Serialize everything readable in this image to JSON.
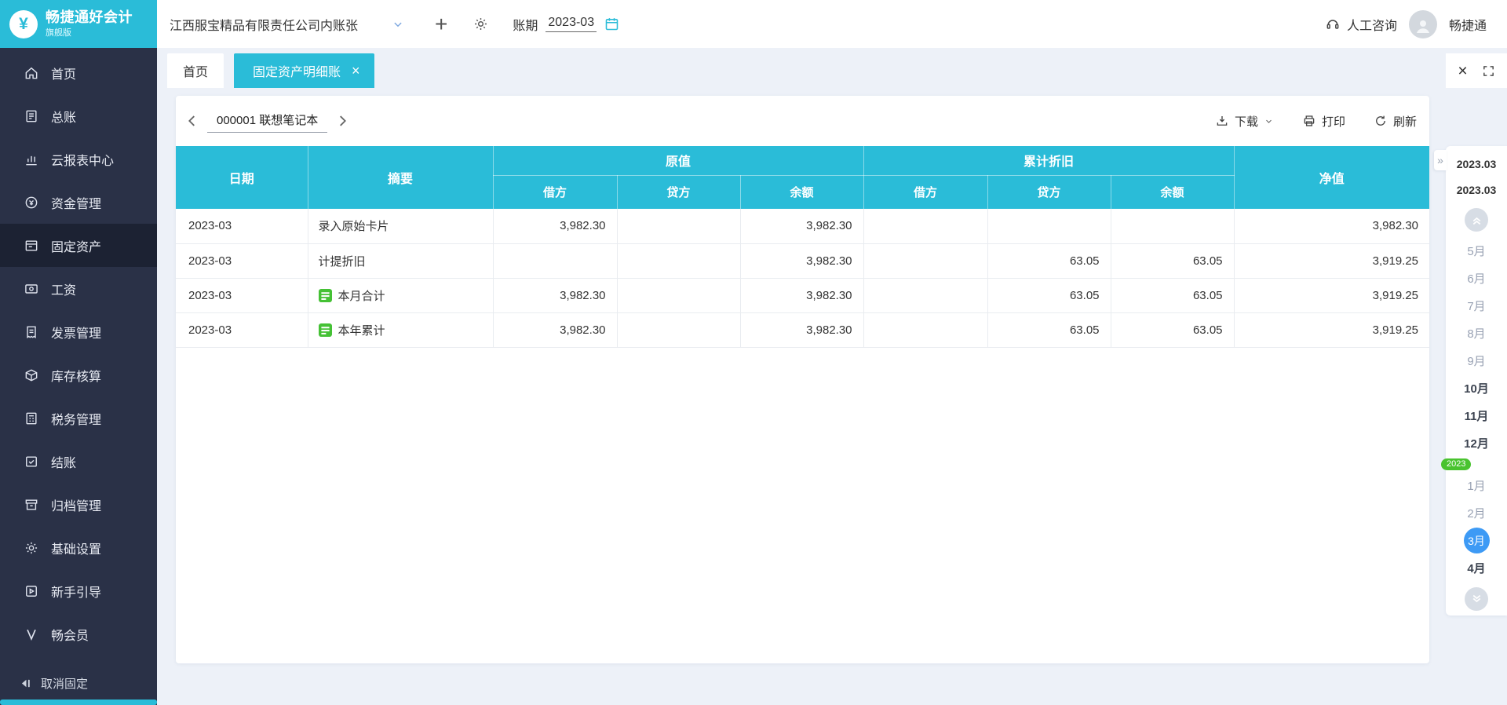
{
  "logo": {
    "title": "畅捷通好会计",
    "subtitle": "旗舰版",
    "symbol": "¥"
  },
  "topbar": {
    "company": "江西服宝精品有限责任公司内账张",
    "period_label": "账期",
    "period_value": "2023-03",
    "consult_label": "人工咨询",
    "username": "畅捷通"
  },
  "sidebar": {
    "items": [
      {
        "id": "home",
        "icon": "home",
        "label": "首页",
        "active": false
      },
      {
        "id": "general-ledger",
        "icon": "ledger",
        "label": "总账",
        "active": false
      },
      {
        "id": "cloud-report-center",
        "icon": "chart",
        "label": "云报表中心",
        "active": false
      },
      {
        "id": "fund-management",
        "icon": "fund",
        "label": "资金管理",
        "active": false
      },
      {
        "id": "fixed-assets",
        "icon": "asset",
        "label": "固定资产",
        "active": true
      },
      {
        "id": "salary",
        "icon": "salary",
        "label": "工资",
        "active": false
      },
      {
        "id": "invoice-management",
        "icon": "invoice",
        "label": "发票管理",
        "active": false
      },
      {
        "id": "inventory-accounting",
        "icon": "inventory",
        "label": "库存核算",
        "active": false
      },
      {
        "id": "tax-management",
        "icon": "tax",
        "label": "税务管理",
        "active": false
      },
      {
        "id": "closing",
        "icon": "closing",
        "label": "结账",
        "active": false
      },
      {
        "id": "archive-management",
        "icon": "archive",
        "label": "归档管理",
        "active": false
      },
      {
        "id": "basic-settings",
        "icon": "gear",
        "label": "基础设置",
        "active": false
      },
      {
        "id": "beginner-guide",
        "icon": "guide",
        "label": "新手引导",
        "active": false
      },
      {
        "id": "member",
        "icon": "member",
        "label": "畅会员",
        "active": false
      }
    ],
    "pin_label": "取消固定"
  },
  "tabs": [
    {
      "id": "home",
      "label": "首页",
      "active": false,
      "closable": false
    },
    {
      "id": "fixed-asset-detail-ledger",
      "label": "固定资产明细账",
      "active": true,
      "closable": true
    }
  ],
  "toolbar": {
    "asset": "000001  联想笔记本",
    "download": "下载",
    "print": "打印",
    "refresh": "刷新"
  },
  "table": {
    "group_headers": {
      "date": "日期",
      "summary": "摘要",
      "original": "原值",
      "depreciation": "累计折旧",
      "net": "净值"
    },
    "sub_headers": {
      "debit": "借方",
      "credit": "贷方",
      "balance": "余额"
    },
    "rows": [
      {
        "date": "2023-03",
        "summary": "录入原始卡片",
        "icon": false,
        "ov_debit": "3,982.30",
        "ov_credit": "",
        "ov_balance": "3,982.30",
        "dep_debit": "",
        "dep_credit": "",
        "dep_balance": "",
        "net": "3,982.30"
      },
      {
        "date": "2023-03",
        "summary": "计提折旧",
        "icon": false,
        "ov_debit": "",
        "ov_credit": "",
        "ov_balance": "3,982.30",
        "dep_debit": "",
        "dep_credit": "63.05",
        "dep_balance": "63.05",
        "net": "3,919.25"
      },
      {
        "date": "2023-03",
        "summary": "本月合计",
        "icon": true,
        "ov_debit": "3,982.30",
        "ov_credit": "",
        "ov_balance": "3,982.30",
        "dep_debit": "",
        "dep_credit": "63.05",
        "dep_balance": "63.05",
        "net": "3,919.25"
      },
      {
        "date": "2023-03",
        "summary": "本年累计",
        "icon": true,
        "ov_debit": "3,982.30",
        "ov_credit": "",
        "ov_balance": "3,982.30",
        "dep_debit": "",
        "dep_credit": "63.05",
        "dep_balance": "63.05",
        "net": "3,919.25"
      }
    ]
  },
  "timeline": {
    "collapse_glyph": "»",
    "periods": [
      "2023.03",
      "2023.03"
    ],
    "months": [
      {
        "label": "5月",
        "type": "dim"
      },
      {
        "label": "6月",
        "type": "dim"
      },
      {
        "label": "7月",
        "type": "dim"
      },
      {
        "label": "8月",
        "type": "dim"
      },
      {
        "label": "9月",
        "type": "dim"
      },
      {
        "label": "10月",
        "type": "dark"
      },
      {
        "label": "11月",
        "type": "dark"
      },
      {
        "label": "12月",
        "type": "dark"
      },
      {
        "label": "2023",
        "type": "year"
      },
      {
        "label": "1月",
        "type": "dim"
      },
      {
        "label": "2月",
        "type": "dim"
      },
      {
        "label": "3月",
        "type": "active"
      },
      {
        "label": "4月",
        "type": "dark"
      }
    ]
  },
  "colors": {
    "accent_teal": "#2abcd8",
    "sidebar_bg": "#2a3147",
    "sidebar_active_bg": "#1c2233",
    "active_month_blue": "#3d9af5",
    "badge_green": "#49c32f",
    "page_bg": "#edf1f8"
  }
}
